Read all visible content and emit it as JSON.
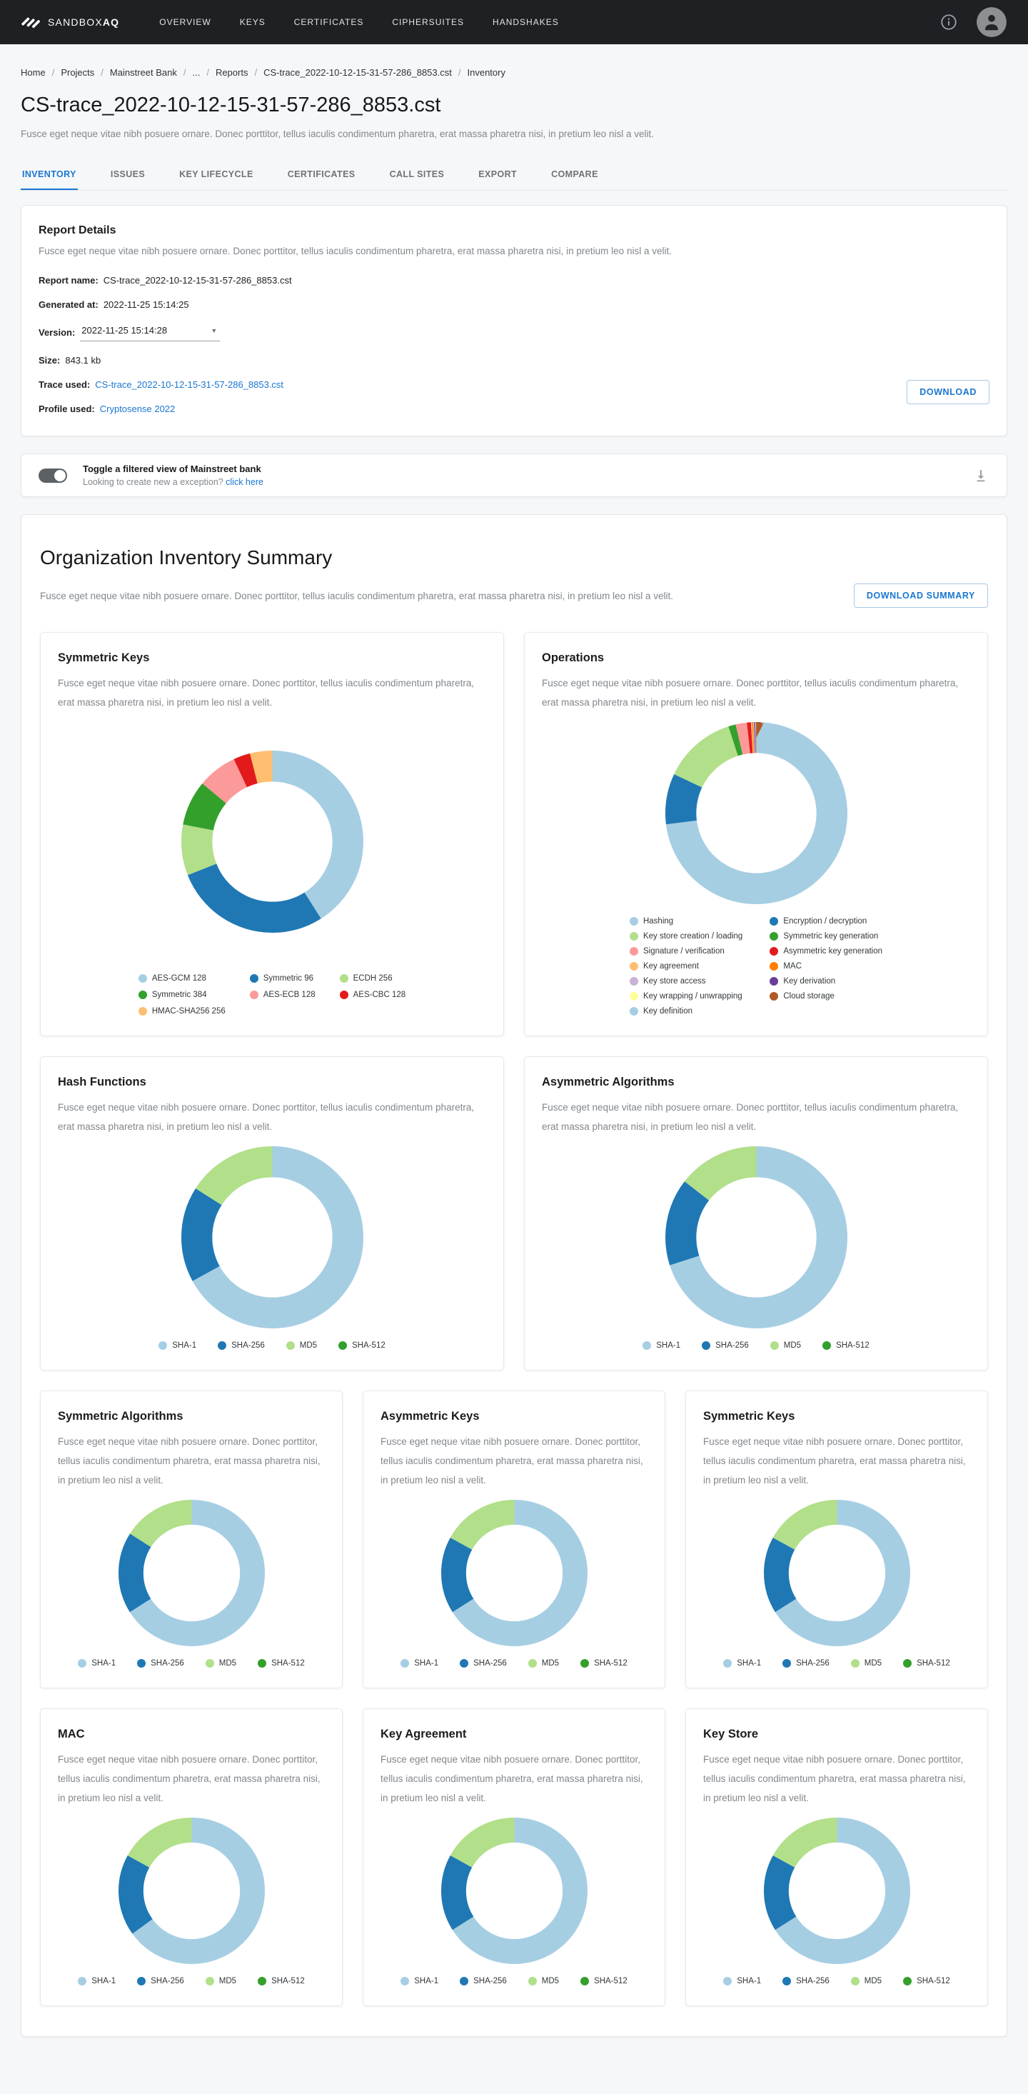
{
  "nav": {
    "brand": {
      "text": "SANDBOX",
      "bold": "AQ"
    },
    "items": [
      "OVERVIEW",
      "KEYS",
      "CERTIFICATES",
      "CIPHERSUITES",
      "HANDSHAKES"
    ]
  },
  "breadcrumb": {
    "separator": "/",
    "items": [
      "Home",
      "Projects",
      "Mainstreet Bank",
      "...",
      "Reports",
      "CS-trace_2022-10-12-15-31-57-286_8853.cst",
      "Inventory"
    ]
  },
  "page": {
    "title": "CS-trace_2022-10-12-15-31-57-286_8853.cst",
    "subtitle": "Fusce eget neque vitae nibh posuere ornare. Donec porttitor, tellus iaculis condimentum pharetra, erat massa pharetra nisi, in pretium leo nisl a velit."
  },
  "tabs": {
    "active": "INVENTORY",
    "items": [
      "INVENTORY",
      "ISSUES",
      "KEY LIFECYCLE",
      "CERTIFICATES",
      "CALL SITES",
      "EXPORT",
      "COMPARE"
    ]
  },
  "report_details": {
    "title": "Report Details",
    "description": "Fusce eget neque vitae nibh posuere ornare. Donec porttitor, tellus iaculis condimentum pharetra, erat massa pharetra nisi, in pretium leo nisl a velit.",
    "fields": {
      "report_name": {
        "label": "Report name:",
        "value": "CS-trace_2022-10-12-15-31-57-286_8853.cst"
      },
      "generated_at": {
        "label": "Generated at:",
        "value": "2022-11-25 15:14:25"
      },
      "version": {
        "label": "Version:",
        "value": "2022-11-25 15:14:28"
      },
      "size": {
        "label": "Size:",
        "value": "843.1 kb"
      },
      "trace_used": {
        "label": "Trace used:",
        "value": "CS-trace_2022-10-12-15-31-57-286_8853.cst"
      },
      "profile_used": {
        "label": "Profile used:",
        "value": "Cryptosense 2022"
      }
    },
    "download_label": "DOWNLOAD"
  },
  "filter_bar": {
    "toggle_on": true,
    "title": "Toggle a filtered view of Mainstreet bank",
    "subtitle": "Looking to create new a exception?",
    "link_label": "click here"
  },
  "summary": {
    "title": "Organization Inventory Summary",
    "description": "Fusce eget neque vitae nibh posuere ornare. Donec porttitor, tellus iaculis condimentum pharetra, erat massa pharetra nisi, in pretium leo nisl a velit.",
    "download_label": "DOWNLOAD SUMMARY"
  },
  "colors": {
    "accent": "#1976d2",
    "nav_background": "#1f2023",
    "palette_paired": [
      "#a6cee3",
      "#1f78b4",
      "#b2df8a",
      "#33a02c",
      "#fb9a99",
      "#e31a1c",
      "#fdbf6f",
      "#ff7f00",
      "#cab2d6",
      "#6a3d9a",
      "#ffff99",
      "#b15928"
    ]
  },
  "chart_data": [
    {
      "type": "donut",
      "size": "half",
      "legend": "grid3",
      "title": "Symmetric Keys",
      "description": "Fusce eget neque vitae nibh posuere ornare. Donec porttitor, tellus iaculis condimentum pharetra, erat massa pharetra nisi, in pretium leo nisl a velit.",
      "slices": [
        {
          "label": "AES-GCM 128",
          "color": "#a6cee3",
          "value": 41
        },
        {
          "label": "Symmetric 96",
          "color": "#1f78b4",
          "value": 28
        },
        {
          "label": "ECDH 256",
          "color": "#b2df8a",
          "value": 9
        },
        {
          "label": "Symmetric 384",
          "color": "#33a02c",
          "value": 8
        },
        {
          "label": "AES-ECB 128",
          "color": "#fb9a99",
          "value": 7
        },
        {
          "label": "AES-CBC 128",
          "color": "#e31a1c",
          "value": 3
        },
        {
          "label": "HMAC-SHA256 256",
          "color": "#fdbf6f",
          "value": 4
        }
      ]
    },
    {
      "type": "donut",
      "size": "half",
      "legend": "grid2",
      "title": "Operations",
      "description": "Fusce eget neque vitae nibh posuere ornare. Donec porttitor, tellus iaculis condimentum pharetra, erat massa pharetra nisi, in pretium leo nisl a velit.",
      "slices": [
        {
          "label": "Hashing",
          "color": "#a6cee3",
          "value": 73
        },
        {
          "label": "Encryption / decryption",
          "color": "#1f78b4",
          "value": 9
        },
        {
          "label": "Key store creation / loading",
          "color": "#b2df8a",
          "value": 13
        },
        {
          "label": "Symmetric key generation",
          "color": "#33a02c",
          "value": 1.3
        },
        {
          "label": "Signature / verification",
          "color": "#fb9a99",
          "value": 2
        },
        {
          "label": "Asymmetric key generation",
          "color": "#e31a1c",
          "value": 0.7
        },
        {
          "label": "Key agreement",
          "color": "#fdbf6f",
          "value": 0.2
        },
        {
          "label": "MAC",
          "color": "#ff7f00",
          "value": 0.2
        },
        {
          "label": "Key store access",
          "color": "#cab2d6",
          "value": 0.2
        },
        {
          "label": "Key derivation",
          "color": "#6a3d9a",
          "value": 0.2
        },
        {
          "label": "Key wrapping / unwrapping",
          "color": "#ffff99",
          "value": 0.1
        },
        {
          "label": "Cloud storage",
          "color": "#b15928",
          "value": 0.1
        },
        {
          "label": "Key definition",
          "color": "#a6cee3",
          "value": 0
        }
      ]
    },
    {
      "type": "donut",
      "size": "half",
      "legend": "row",
      "title": "Hash Functions",
      "description": "Fusce eget neque vitae nibh posuere ornare. Donec porttitor, tellus iaculis condimentum pharetra, erat massa pharetra nisi, in pretium leo nisl a velit.",
      "slices": [
        {
          "label": "SHA-1",
          "color": "#a6cee3",
          "value": 67
        },
        {
          "label": "SHA-256",
          "color": "#1f78b4",
          "value": 17
        },
        {
          "label": "MD5",
          "color": "#b2df8a",
          "value": 16
        },
        {
          "label": "SHA-512",
          "color": "#33a02c",
          "value": 0
        }
      ]
    },
    {
      "type": "donut",
      "size": "half",
      "legend": "row",
      "title": "Asymmetric Algorithms",
      "description": "Fusce eget neque vitae nibh posuere ornare. Donec porttitor, tellus iaculis condimentum pharetra, erat massa pharetra nisi, in pretium leo nisl a velit.",
      "slices": [
        {
          "label": "SHA-1",
          "color": "#a6cee3",
          "value": 70
        },
        {
          "label": "SHA-256",
          "color": "#1f78b4",
          "value": 15.5
        },
        {
          "label": "MD5",
          "color": "#b2df8a",
          "value": 14.5
        },
        {
          "label": "SHA-512",
          "color": "#33a02c",
          "value": 0
        }
      ]
    },
    {
      "type": "donut",
      "size": "third",
      "legend": "row",
      "title": "Symmetric Algorithms",
      "description": "Fusce eget neque vitae nibh posuere ornare. Donec porttitor, tellus iaculis condimentum pharetra, erat massa pharetra nisi, in pretium leo nisl a velit.",
      "slices": [
        {
          "label": "SHA-1",
          "color": "#a6cee3",
          "value": 66
        },
        {
          "label": "SHA-256",
          "color": "#1f78b4",
          "value": 18
        },
        {
          "label": "MD5",
          "color": "#b2df8a",
          "value": 16
        },
        {
          "label": "SHA-512",
          "color": "#33a02c",
          "value": 0
        }
      ]
    },
    {
      "type": "donut",
      "size": "third",
      "legend": "row",
      "title": "Asymmetric Keys",
      "description": "Fusce eget neque vitae nibh posuere ornare. Donec porttitor, tellus iaculis condimentum pharetra, erat massa pharetra nisi, in pretium leo nisl a velit.",
      "slices": [
        {
          "label": "SHA-1",
          "color": "#a6cee3",
          "value": 66
        },
        {
          "label": "SHA-256",
          "color": "#1f78b4",
          "value": 17
        },
        {
          "label": "MD5",
          "color": "#b2df8a",
          "value": 17
        },
        {
          "label": "SHA-512",
          "color": "#33a02c",
          "value": 0
        }
      ]
    },
    {
      "type": "donut",
      "size": "third",
      "legend": "row",
      "title": "Symmetric Keys",
      "description": "Fusce eget neque vitae nibh posuere ornare. Donec porttitor, tellus iaculis condimentum pharetra, erat massa pharetra nisi, in pretium leo nisl a velit.",
      "slices": [
        {
          "label": "SHA-1",
          "color": "#a6cee3",
          "value": 66
        },
        {
          "label": "SHA-256",
          "color": "#1f78b4",
          "value": 17
        },
        {
          "label": "MD5",
          "color": "#b2df8a",
          "value": 17
        },
        {
          "label": "SHA-512",
          "color": "#33a02c",
          "value": 0
        }
      ]
    },
    {
      "type": "donut",
      "size": "third",
      "legend": "row",
      "title": "MAC",
      "description": "Fusce eget neque vitae nibh posuere ornare. Donec porttitor, tellus iaculis condimentum pharetra, erat massa pharetra nisi, in pretium leo nisl a velit.",
      "slices": [
        {
          "label": "SHA-1",
          "color": "#a6cee3",
          "value": 65
        },
        {
          "label": "SHA-256",
          "color": "#1f78b4",
          "value": 18
        },
        {
          "label": "MD5",
          "color": "#b2df8a",
          "value": 17
        },
        {
          "label": "SHA-512",
          "color": "#33a02c",
          "value": 0
        }
      ]
    },
    {
      "type": "donut",
      "size": "third",
      "legend": "row",
      "title": "Key Agreement",
      "description": "Fusce eget neque vitae nibh posuere ornare. Donec porttitor, tellus iaculis condimentum pharetra, erat massa pharetra nisi, in pretium leo nisl a velit.",
      "slices": [
        {
          "label": "SHA-1",
          "color": "#a6cee3",
          "value": 66
        },
        {
          "label": "SHA-256",
          "color": "#1f78b4",
          "value": 17
        },
        {
          "label": "MD5",
          "color": "#b2df8a",
          "value": 17
        },
        {
          "label": "SHA-512",
          "color": "#33a02c",
          "value": 0
        }
      ]
    },
    {
      "type": "donut",
      "size": "third",
      "legend": "row",
      "title": "Key Store",
      "description": "Fusce eget neque vitae nibh posuere ornare. Donec porttitor, tellus iaculis condimentum pharetra, erat massa pharetra nisi, in pretium leo nisl a velit.",
      "slices": [
        {
          "label": "SHA-1",
          "color": "#a6cee3",
          "value": 66
        },
        {
          "label": "SHA-256",
          "color": "#1f78b4",
          "value": 17
        },
        {
          "label": "MD5",
          "color": "#b2df8a",
          "value": 17
        },
        {
          "label": "SHA-512",
          "color": "#33a02c",
          "value": 0
        }
      ]
    }
  ]
}
